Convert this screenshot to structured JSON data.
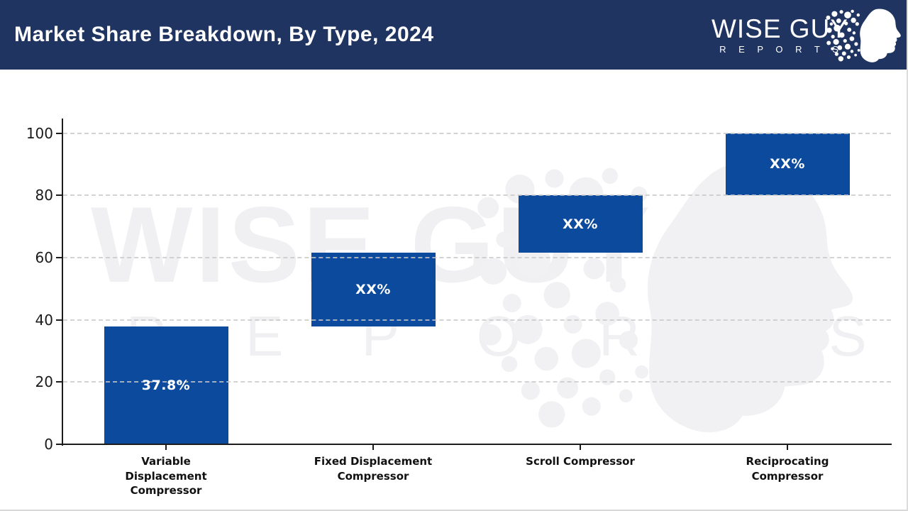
{
  "header": {
    "title": "Market Share Breakdown, By Type, 2024",
    "logo": {
      "line1": "WISE GUY",
      "line2": "R E P O R T S"
    }
  },
  "watermark": {
    "line1": "WISE GUY",
    "line2": "R E P O R T S"
  },
  "chart_data": {
    "type": "bar",
    "subtype": "waterfall",
    "title": "Market Share Breakdown, By Type, 2024",
    "categories": [
      "Variable\nDisplacement\nCompressor",
      "Fixed Displacement\nCompressor",
      "Scroll Compressor",
      "Reciprocating\nCompressor"
    ],
    "segments": [
      {
        "category": "Variable Displacement Compressor",
        "start": 0,
        "end": 37.8,
        "label": "37.8%"
      },
      {
        "category": "Fixed Displacement Compressor",
        "start": 37.8,
        "end": 61.6,
        "label": "XX%"
      },
      {
        "category": "Scroll Compressor",
        "start": 61.6,
        "end": 80,
        "label": "XX%"
      },
      {
        "category": "Reciprocating Compressor",
        "start": 80,
        "end": 100,
        "label": "XX%"
      }
    ],
    "xlabel": "",
    "ylabel": "",
    "ylim": [
      0,
      100
    ],
    "yticks": [
      0,
      20,
      40,
      60,
      80,
      100
    ],
    "grid": {
      "horizontal": true,
      "style": "dashed"
    },
    "legend": "none",
    "bar_color": "#0c4a9e",
    "bar_label_color": "#ffffff"
  },
  "colors": {
    "header_bg": "#203461",
    "bar": "#0c4a9e",
    "watermark": "#f0f0f3",
    "axis": "#1c1c1c",
    "gridline": "#c9c9c9"
  }
}
